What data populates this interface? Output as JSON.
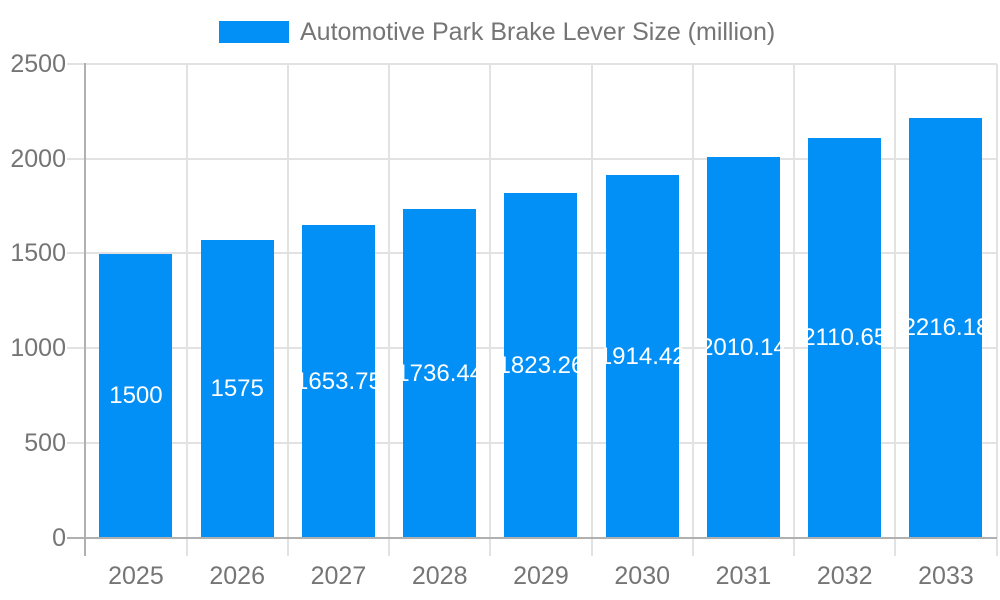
{
  "legend": {
    "label": "Automotive Park Brake Lever Size (million)"
  },
  "chart_data": {
    "type": "bar",
    "title": "Automotive Park Brake Lever Size (million)",
    "categories": [
      "2025",
      "2026",
      "2027",
      "2028",
      "2029",
      "2030",
      "2031",
      "2032",
      "2033"
    ],
    "values": [
      1500,
      1575,
      1653.75,
      1736.44,
      1823.26,
      1914.42,
      2010.14,
      2110.65,
      2216.18
    ],
    "bar_labels": [
      "1500",
      "1575",
      "1653.75",
      "1736.44",
      "1823.26",
      "1914.42",
      "2010.14",
      "2110.65",
      "2216.18"
    ],
    "xlabel": "",
    "ylabel": "",
    "ylim": [
      0,
      2500
    ],
    "y_ticks": [
      0,
      500,
      1000,
      1500,
      2000,
      2500
    ],
    "grid": true,
    "legend_position": "top",
    "colors": {
      "bar": "#0290F7",
      "axis_text": "#757575",
      "bar_label_text": "#FFFFFF",
      "gridline": "#E2E2E2",
      "axis_line": "#B0B0B0",
      "background": "#FFFFFF"
    }
  }
}
